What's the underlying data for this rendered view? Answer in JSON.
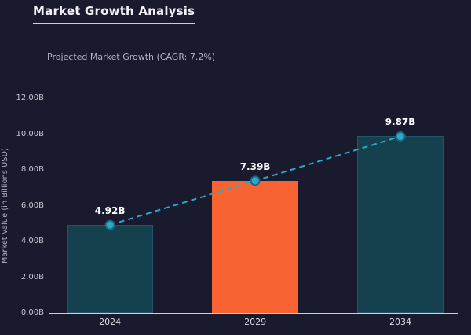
{
  "title": "Market Growth Analysis",
  "subtitle": "Projected Market Growth (CAGR: 7.2%)",
  "chart_data": {
    "type": "bar",
    "title": "Market Growth Analysis",
    "subtitle": "Projected Market Growth (CAGR: 7.2%)",
    "categories": [
      "2024",
      "2029",
      "2034"
    ],
    "values": [
      4.92,
      7.39,
      9.87
    ],
    "value_labels": [
      "4.92B",
      "7.39B",
      "9.87B"
    ],
    "bar_colors": [
      "#15404e",
      "#f96332",
      "#15404e"
    ],
    "bar_styles": [
      "teal",
      "orange",
      "teal"
    ],
    "xlabel": "",
    "ylabel": "Market Value (in Billions USD)",
    "ylim": [
      0,
      12
    ],
    "ytick_step": 2,
    "ytick_labels": [
      "0.00B",
      "2.00B",
      "4.00B",
      "6.00B",
      "8.00B",
      "10.00B",
      "12.00B"
    ],
    "grid": false,
    "legend": "none",
    "trend_line": {
      "style": "dashed",
      "color": "#2aa8c8",
      "marker_fill": "#2fa9c9",
      "marker_stroke": "#1c6a82"
    },
    "colors": {
      "background": "#1a1a2e",
      "axis": "#cfcfd6",
      "text": "#f2f2f5",
      "muted_text": "#b4b4c0"
    }
  }
}
